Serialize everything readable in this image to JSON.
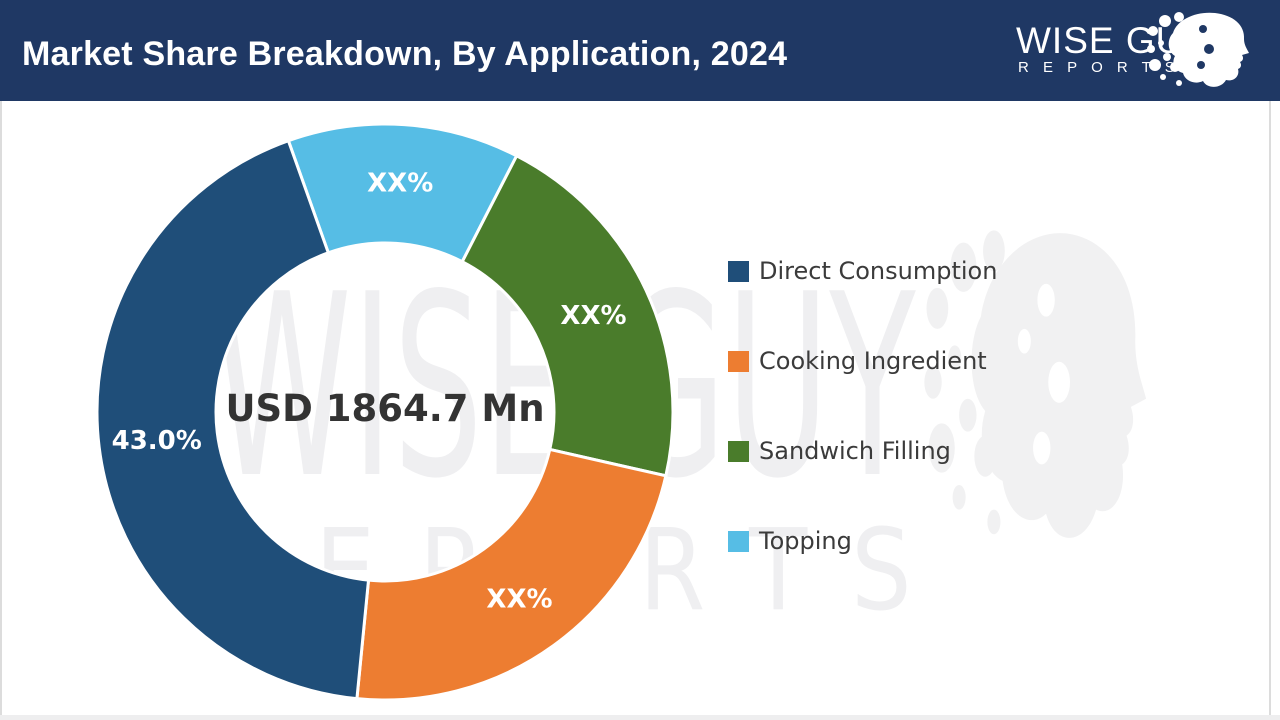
{
  "header": {
    "title": "Market Share Breakdown, By Application, 2024",
    "logo_line1": "WISE GUY",
    "logo_line2": "R E P O R T S",
    "bg_color": "#1f3864"
  },
  "watermark": {
    "line1": "WISE GUY",
    "line2": "R E P O R T S"
  },
  "chart_data": {
    "type": "pie",
    "subtype": "donut",
    "title": "Market Share Breakdown, By Application, 2024",
    "center_label": "USD 1864.7 Mn",
    "start_angle_deg": -19.6,
    "outer_r": 288,
    "inner_r": 169,
    "label_r": 230,
    "segments": [
      {
        "name": "topping",
        "label": "XX%",
        "pct": 13,
        "color": "#56bde5"
      },
      {
        "name": "sandwich-filling",
        "label": "XX%",
        "pct": 21,
        "color": "#4a7c2b"
      },
      {
        "name": "cooking-ingredient",
        "label": "XX%",
        "pct": 23,
        "color": "#ed7d31"
      },
      {
        "name": "direct-consumption",
        "label": "43.0%",
        "pct": 43,
        "color": "#1f4e79"
      }
    ],
    "legend": [
      {
        "label": "Direct Consumption",
        "color": "#1f4e79"
      },
      {
        "label": "Cooking Ingredient",
        "color": "#ed7d31"
      },
      {
        "label": "Sandwich Filling",
        "color": "#4a7c2b"
      },
      {
        "label": "Topping",
        "color": "#56bde5"
      }
    ],
    "legend_position": "right",
    "separator_color": "#ffffff"
  }
}
